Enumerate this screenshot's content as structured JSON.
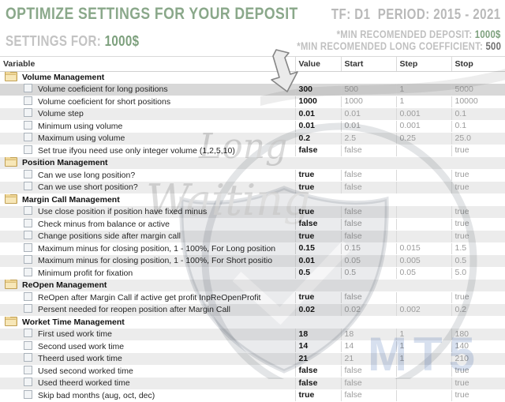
{
  "header": {
    "title": "OPTIMIZE SETTINGS FOR YOUR DEPOSIT",
    "tf_label": "TF: D1",
    "period_label": "PERIOD: 2015 - 2021",
    "settings_for_label": "SETTINGS FOR:",
    "settings_for_value": "1000$",
    "min_deposit_label": "*MIN RECOMENDED DEPOSIT:",
    "min_deposit_value": "1000$",
    "min_coeff_label": "*MIN RECOMENDED LONG COEFFICIENT:",
    "min_coeff_value": "500"
  },
  "colors": {
    "accent_green": "#8aa88a",
    "value_green": "#7da07d",
    "muted_gray": "#bdbdbd",
    "row_stripe": "#ececec",
    "selected_row": "#d8d8d8",
    "value_text": "#161616",
    "range_text": "#9b9b9b",
    "folder_yellow": "#eed595",
    "watermark_blue": "#86a2cd"
  },
  "icons": {
    "folder": "folder-icon",
    "checkbox": "checkbox",
    "arrow": "arrow-annotation",
    "shield": "shield-watermark"
  },
  "watermark": {
    "line1": "Long",
    "line2": "Waiting",
    "badge": "MT5"
  },
  "table": {
    "columns": [
      "Variable",
      "Value",
      "Start",
      "Step",
      "Stop"
    ],
    "sections": [
      {
        "name": "Volume Management",
        "rows": [
          {
            "variable": "Volume coeficient for long positions",
            "value": "300",
            "start": "500",
            "step": "1",
            "stop": "5000",
            "selected": true
          },
          {
            "variable": "Volume coeficient for short positions",
            "value": "1000",
            "start": "1000",
            "step": "1",
            "stop": "10000"
          },
          {
            "variable": "Volume step",
            "value": "0.01",
            "start": "0.01",
            "step": "0.001",
            "stop": "0.1"
          },
          {
            "variable": "Minimum using volume",
            "value": "0.01",
            "start": "0.01",
            "step": "0.001",
            "stop": "0.1"
          },
          {
            "variable": "Maximum using volume",
            "value": "0.2",
            "start": "2.5",
            "step": "0.25",
            "stop": "25.0"
          },
          {
            "variable": "Set true ifyou need use only integer volume (1,2,5,10)",
            "value": "false",
            "start": "false",
            "step": "",
            "stop": "true"
          }
        ]
      },
      {
        "name": "Position Management",
        "rows": [
          {
            "variable": "Can we use long position?",
            "value": "true",
            "start": "false",
            "step": "",
            "stop": "true"
          },
          {
            "variable": "Can we use short position?",
            "value": "true",
            "start": "false",
            "step": "",
            "stop": "true"
          }
        ]
      },
      {
        "name": "Margin Call Management",
        "rows": [
          {
            "variable": "Use close position if position have fixed minus",
            "value": "true",
            "start": "false",
            "step": "",
            "stop": "true"
          },
          {
            "variable": "Check minus from balance or active",
            "value": "false",
            "start": "false",
            "step": "",
            "stop": "true"
          },
          {
            "variable": "Change positions side after margin call",
            "value": "true",
            "start": "false",
            "step": "",
            "stop": "true"
          },
          {
            "variable": "Maximum minus for closing position, 1 - 100%, For Long position",
            "value": "0.15",
            "start": "0.15",
            "step": "0.015",
            "stop": "1.5"
          },
          {
            "variable": "Maximum minus for closing position, 1 - 100%, For Short positio",
            "value": "0.01",
            "start": "0.05",
            "step": "0.005",
            "stop": "0.5"
          },
          {
            "variable": "Minimum profit for fixation",
            "value": "0.5",
            "start": "0.5",
            "step": "0.05",
            "stop": "5.0"
          }
        ]
      },
      {
        "name": "ReOpen Management",
        "rows": [
          {
            "variable": "ReOpen after Margin Call if active get profit InpReOpenProfit",
            "value": "true",
            "start": "false",
            "step": "",
            "stop": "true"
          },
          {
            "variable": "Persent needed for reopen position after Margin Call",
            "value": "0.02",
            "start": "0.02",
            "step": "0.002",
            "stop": "0.2"
          }
        ]
      },
      {
        "name": "Worket Time Management",
        "rows": [
          {
            "variable": "First used work time",
            "value": "18",
            "start": "18",
            "step": "1",
            "stop": "180"
          },
          {
            "variable": "Second used work time",
            "value": "14",
            "start": "14",
            "step": "1",
            "stop": "140"
          },
          {
            "variable": "Theerd used work time",
            "value": "21",
            "start": "21",
            "step": "1",
            "stop": "210"
          },
          {
            "variable": "Used second worked time",
            "value": "false",
            "start": "false",
            "step": "",
            "stop": "true"
          },
          {
            "variable": "Used theerd worked time",
            "value": "false",
            "start": "false",
            "step": "",
            "stop": "true"
          },
          {
            "variable": "Skip bad months (aug, oct, dec)",
            "value": "true",
            "start": "false",
            "step": "",
            "stop": "true"
          }
        ]
      }
    ]
  }
}
